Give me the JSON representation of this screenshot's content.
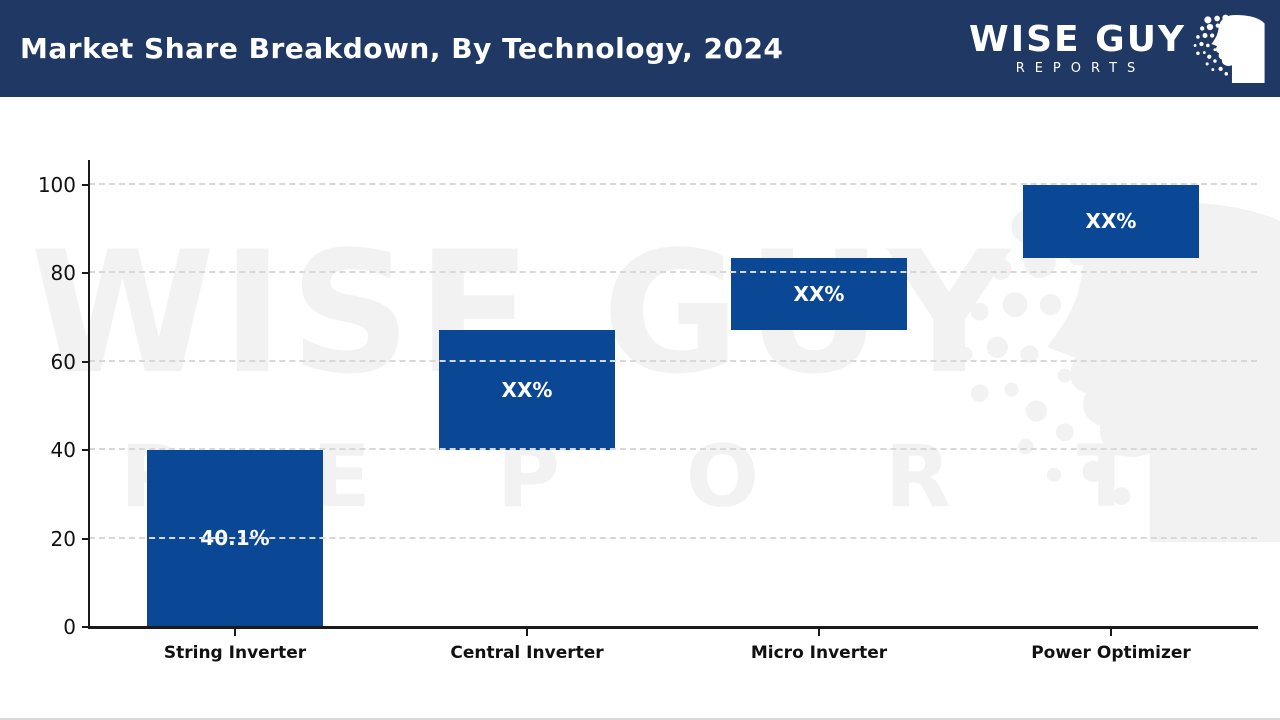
{
  "header": {
    "title": "Market Share Breakdown, By Technology, 2024",
    "logo": {
      "line1": "WISE GUY",
      "line2": "REPORTS"
    }
  },
  "watermark": {
    "line1": "WISE GUY",
    "line2": "R E P O R T S"
  },
  "chart_data": {
    "type": "bar",
    "subtype": "waterfall",
    "title": "Market Share Breakdown, By Technology, 2024",
    "categories": [
      "String Inverter",
      "Central Inverter",
      "Micro Inverter",
      "Power Optimizer"
    ],
    "series": [
      {
        "name": "Market Share (%)",
        "segments": [
          [
            0,
            40.1
          ],
          [
            40.1,
            67.2
          ],
          [
            67.2,
            83.5
          ],
          [
            83.5,
            100
          ]
        ]
      }
    ],
    "bar_labels": [
      "40.1%",
      "XX%",
      "XX%",
      "XX%"
    ],
    "xlabel": "",
    "ylabel": "",
    "ylim": [
      0,
      100
    ],
    "yticks": [
      0,
      20,
      40,
      60,
      80,
      100
    ],
    "grid": "horizontal-dashed",
    "legend": "none",
    "bar_color": "#0a4896",
    "bar_label_color": "#ffffff"
  },
  "colors": {
    "header_bg": "#203864",
    "title_text": "#ffffff",
    "axis": "#1a1a1a",
    "gridline": "#d8d8d8",
    "watermark": "#f2f2f2"
  }
}
